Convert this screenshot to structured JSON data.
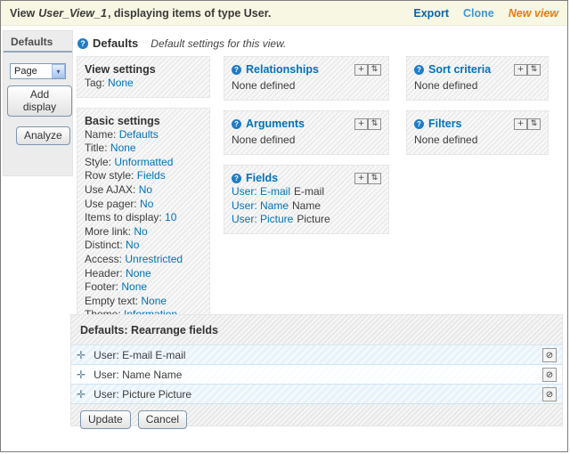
{
  "header": {
    "title_prefix": "View",
    "view_name": "User_View_1",
    "title_suffix": ", displaying items of type User.",
    "links": [
      {
        "label": "Export"
      },
      {
        "label": "Clone"
      },
      {
        "label": "New view"
      }
    ]
  },
  "sidebar": {
    "tab_label": "Defaults",
    "display_select_value": "Page",
    "add_display_label": "Add display",
    "analyze_label": "Analyze"
  },
  "main": {
    "heading": "Defaults",
    "heading_description": "Default settings for this view.",
    "view_settings": {
      "title": "View settings",
      "rows": [
        {
          "label": "Tag:",
          "value": "None"
        }
      ]
    },
    "basic_settings": {
      "title": "Basic settings",
      "rows": [
        {
          "label": "Name:",
          "value": "Defaults"
        },
        {
          "label": "Title:",
          "value": "None"
        },
        {
          "label": "Style:",
          "value": "Unformatted"
        },
        {
          "label": "Row style:",
          "value": "Fields"
        },
        {
          "label": "Use AJAX:",
          "value": "No"
        },
        {
          "label": "Use pager:",
          "value": "No"
        },
        {
          "label": "Items to display:",
          "value": "10"
        },
        {
          "label": "More link:",
          "value": "No"
        },
        {
          "label": "Distinct:",
          "value": "No"
        },
        {
          "label": "Access:",
          "value": "Unrestricted"
        },
        {
          "label": "Header:",
          "value": "None"
        },
        {
          "label": "Footer:",
          "value": "None"
        },
        {
          "label": "Empty text:",
          "value": "None"
        },
        {
          "label": "Theme:",
          "value": "Information"
        }
      ]
    },
    "relationships": {
      "title": "Relationships",
      "empty": "None defined"
    },
    "arguments": {
      "title": "Arguments",
      "empty": "None defined"
    },
    "fields": {
      "title": "Fields",
      "items": [
        {
          "link": "User: E-mail",
          "suffix": "E-mail"
        },
        {
          "link": "User: Name",
          "suffix": "Name"
        },
        {
          "link": "User: Picture",
          "suffix": "Picture"
        }
      ]
    },
    "sort_criteria": {
      "title": "Sort criteria",
      "empty": "None defined"
    },
    "filters": {
      "title": "Filters",
      "empty": "None defined"
    }
  },
  "rearrange": {
    "title": "Defaults: Rearrange fields",
    "rows": [
      {
        "label": "User: E-mail E-mail"
      },
      {
        "label": "User: Name Name"
      },
      {
        "label": "User: Picture Picture"
      }
    ],
    "update_label": "Update",
    "cancel_label": "Cancel"
  },
  "icons": {
    "help": "?",
    "add": "+",
    "rearrange": "⇅",
    "drag": "✛",
    "remove": "⊘",
    "select_arrow": "▾"
  },
  "colors": {
    "link_blue": "#0073ba",
    "export_blue": "#0e62a6",
    "clone_blue": "#3e97d0",
    "new_view_orange": "#ee7b06",
    "header_cream": "#f8f7e4",
    "tab_underline": "#92a8ba"
  }
}
